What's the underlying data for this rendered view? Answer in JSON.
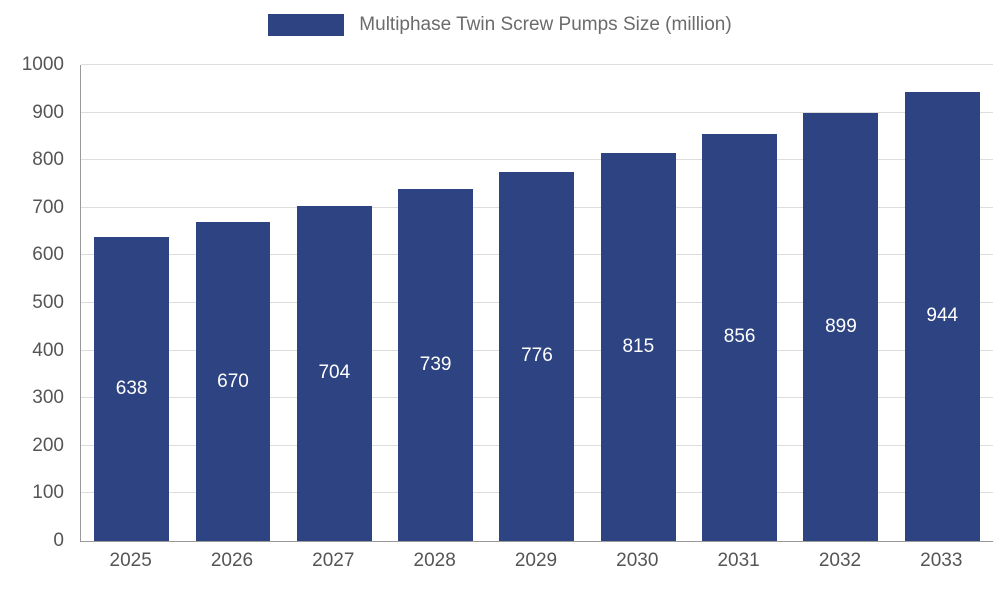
{
  "chart_data": {
    "type": "bar",
    "title": "Multiphase Twin Screw Pumps Size (million)",
    "categories": [
      "2025",
      "2026",
      "2027",
      "2028",
      "2029",
      "2030",
      "2031",
      "2032",
      "2033"
    ],
    "values": [
      638,
      670,
      704,
      739,
      776,
      815,
      856,
      899,
      944
    ],
    "xlabel": "",
    "ylabel": "",
    "ylim": [
      0,
      1000
    ],
    "ytick_step": 100,
    "grid": true,
    "legend_position": "top",
    "colors": {
      "bar_fill": "#2e4482",
      "bar_value_text": "#ffffff",
      "axis_text": "#555555",
      "legend_text": "#6b6b6b",
      "gridline": "#dddddd",
      "axis_line": "#999999"
    }
  }
}
